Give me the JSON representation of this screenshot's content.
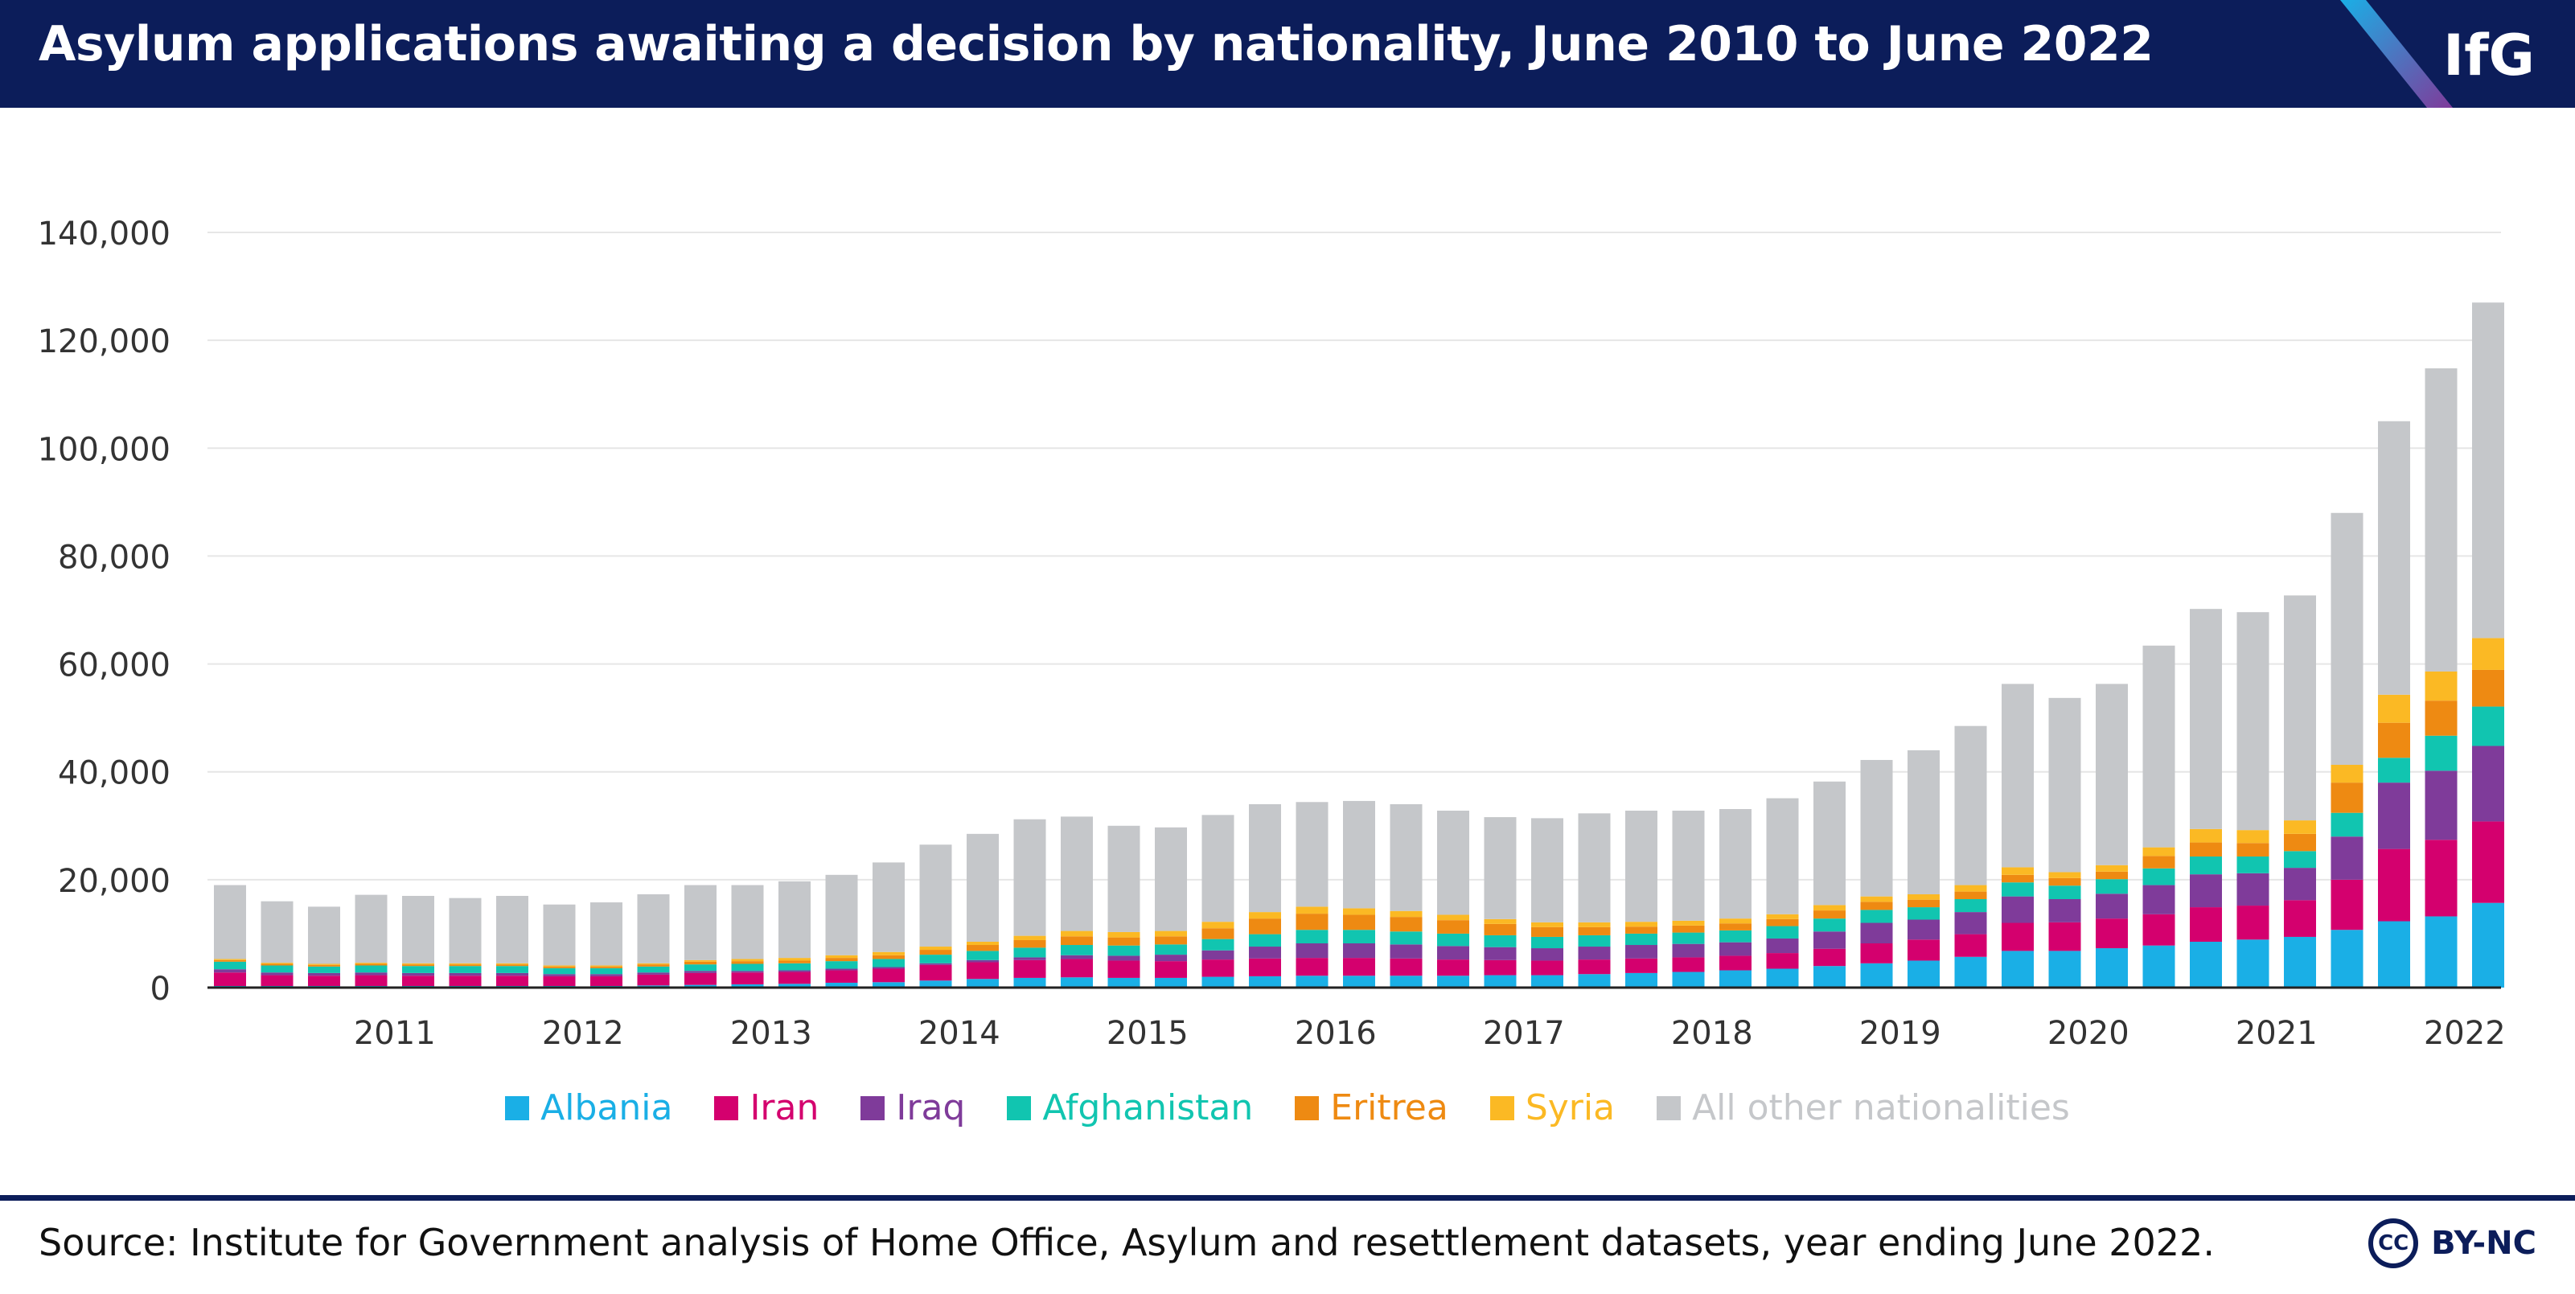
{
  "header": {
    "title": "Asylum applications awaiting a decision by nationality, June 2010 to June 2022",
    "logo": "IfG"
  },
  "footer": {
    "source": "Source: Institute for Government analysis of Home Office, Asylum and resettlement datasets, year ending June 2022.",
    "license_icon": "CC",
    "license_text": "BY-NC"
  },
  "colors": {
    "header_bg": "#0c1d5a",
    "albania": "#1aafe6",
    "iran": "#d4006e",
    "iraq": "#7f3b9a",
    "afghanistan": "#11c5b0",
    "eritrea": "#ee8a12",
    "syria": "#fbb924",
    "other": "#c5c7ca"
  },
  "chart_data": {
    "type": "bar",
    "stacked": true,
    "title": "Asylum applications awaiting a decision by nationality, June 2010 to June 2022",
    "xlabel": "",
    "ylabel": "",
    "ylim": [
      0,
      140000
    ],
    "yticks": [
      0,
      20000,
      40000,
      60000,
      80000,
      100000,
      120000,
      140000
    ],
    "ytick_labels": [
      "0",
      "20,000",
      "40,000",
      "60,000",
      "80,000",
      "100,000",
      "120,000",
      "140,000"
    ],
    "grid": true,
    "legend_position": "bottom",
    "period_start": "June 2010",
    "period_end": "June 2022",
    "bar_interval": "quarterly",
    "x_tick_labels": [
      "2011",
      "2012",
      "2013",
      "2014",
      "2015",
      "2016",
      "2017",
      "2018",
      "2019",
      "2020",
      "2021",
      "2022"
    ],
    "x_tick_bar_index": [
      3.5,
      7.5,
      11.5,
      15.5,
      19.5,
      23.5,
      27.5,
      31.5,
      35.5,
      39.5,
      43.5,
      47.5
    ],
    "totals": [
      19000,
      16000,
      15000,
      17200,
      17000,
      16600,
      17000,
      15400,
      15800,
      17300,
      19000,
      19000,
      19700,
      20900,
      23200,
      26500,
      28500,
      31200,
      31700,
      30000,
      29700,
      32000,
      34000,
      34400,
      34600,
      34000,
      32800,
      31600,
      31400,
      32300,
      32800,
      32800,
      33100,
      35100,
      38200,
      42200,
      44000,
      48500,
      56300,
      53700,
      56300,
      63400,
      70200,
      69600,
      72700,
      88000,
      105000,
      114800,
      127000
    ],
    "series": [
      {
        "name": "Albania",
        "values": [
          300,
          300,
          300,
          300,
          300,
          300,
          300,
          300,
          300,
          400,
          500,
          600,
          700,
          900,
          1000,
          1300,
          1600,
          1800,
          1900,
          1800,
          1800,
          2000,
          2100,
          2200,
          2200,
          2200,
          2200,
          2300,
          2300,
          2500,
          2700,
          2900,
          3200,
          3500,
          4000,
          4500,
          5000,
          5700,
          6800,
          6800,
          7300,
          7800,
          8500,
          8900,
          9400,
          10700,
          12300,
          13200,
          15700
        ]
      },
      {
        "name": "Iran",
        "values": [
          2500,
          2000,
          1900,
          2000,
          1900,
          1900,
          1900,
          1800,
          1800,
          2000,
          2200,
          2200,
          2200,
          2300,
          2500,
          2900,
          3100,
          3300,
          3400,
          3200,
          3100,
          3200,
          3300,
          3300,
          3300,
          3200,
          3000,
          2800,
          2700,
          2700,
          2700,
          2700,
          2700,
          2900,
          3200,
          3700,
          3900,
          4200,
          5200,
          5300,
          5500,
          5800,
          6400,
          6300,
          6800,
          9300,
          13400,
          14200,
          15100
        ]
      },
      {
        "name": "Iraq",
        "values": [
          600,
          500,
          500,
          500,
          500,
          500,
          500,
          400,
          400,
          400,
          400,
          300,
          300,
          300,
          300,
          300,
          400,
          500,
          700,
          900,
          1200,
          1700,
          2200,
          2700,
          2700,
          2600,
          2500,
          2400,
          2300,
          2400,
          2500,
          2500,
          2500,
          2700,
          3200,
          3800,
          3700,
          4100,
          4900,
          4300,
          4600,
          5400,
          6100,
          6000,
          6000,
          8000,
          12300,
          12800,
          14000
        ]
      },
      {
        "name": "Afghanistan",
        "values": [
          1400,
          1300,
          1200,
          1300,
          1300,
          1300,
          1300,
          1100,
          1100,
          1100,
          1200,
          1300,
          1300,
          1400,
          1500,
          1600,
          1700,
          1800,
          1900,
          1900,
          1900,
          2100,
          2300,
          2500,
          2500,
          2400,
          2300,
          2200,
          2100,
          2100,
          2100,
          2100,
          2200,
          2300,
          2400,
          2400,
          2300,
          2400,
          2600,
          2500,
          2700,
          3100,
          3300,
          3100,
          3100,
          4400,
          4600,
          6500,
          7300
        ]
      },
      {
        "name": "Eritrea",
        "values": [
          300,
          300,
          300,
          300,
          300,
          300,
          300,
          300,
          300,
          400,
          500,
          500,
          500,
          600,
          700,
          900,
          1100,
          1400,
          1600,
          1500,
          1500,
          2000,
          2900,
          3000,
          2800,
          2700,
          2500,
          2100,
          1800,
          1500,
          1300,
          1300,
          1300,
          1300,
          1500,
          1500,
          1400,
          1400,
          1400,
          1400,
          1400,
          2300,
          2600,
          2500,
          3200,
          5600,
          6500,
          6500,
          6800
        ]
      },
      {
        "name": "Syria",
        "values": [
          200,
          200,
          200,
          200,
          200,
          200,
          200,
          200,
          200,
          200,
          300,
          400,
          500,
          500,
          600,
          600,
          600,
          800,
          1000,
          1000,
          1000,
          1200,
          1200,
          1300,
          1200,
          1100,
          1000,
          900,
          900,
          900,
          900,
          900,
          900,
          900,
          1000,
          1000,
          1000,
          1200,
          1400,
          1100,
          1200,
          1600,
          2500,
          2400,
          2500,
          3300,
          5200,
          5400,
          5900
        ]
      },
      {
        "name": "All other nationalities",
        "values": [
          13700,
          11400,
          10600,
          12600,
          12500,
          12100,
          12500,
          11300,
          11700,
          12800,
          13900,
          13700,
          14200,
          14900,
          16600,
          18900,
          20000,
          21600,
          21200,
          19700,
          19200,
          19800,
          20000,
          19400,
          19900,
          19800,
          19300,
          18900,
          19300,
          20200,
          20600,
          20400,
          20300,
          21500,
          22900,
          25300,
          26700,
          29500,
          34000,
          32300,
          33600,
          37400,
          40800,
          40400,
          41700,
          46700,
          50700,
          56200,
          62200
        ]
      }
    ]
  }
}
